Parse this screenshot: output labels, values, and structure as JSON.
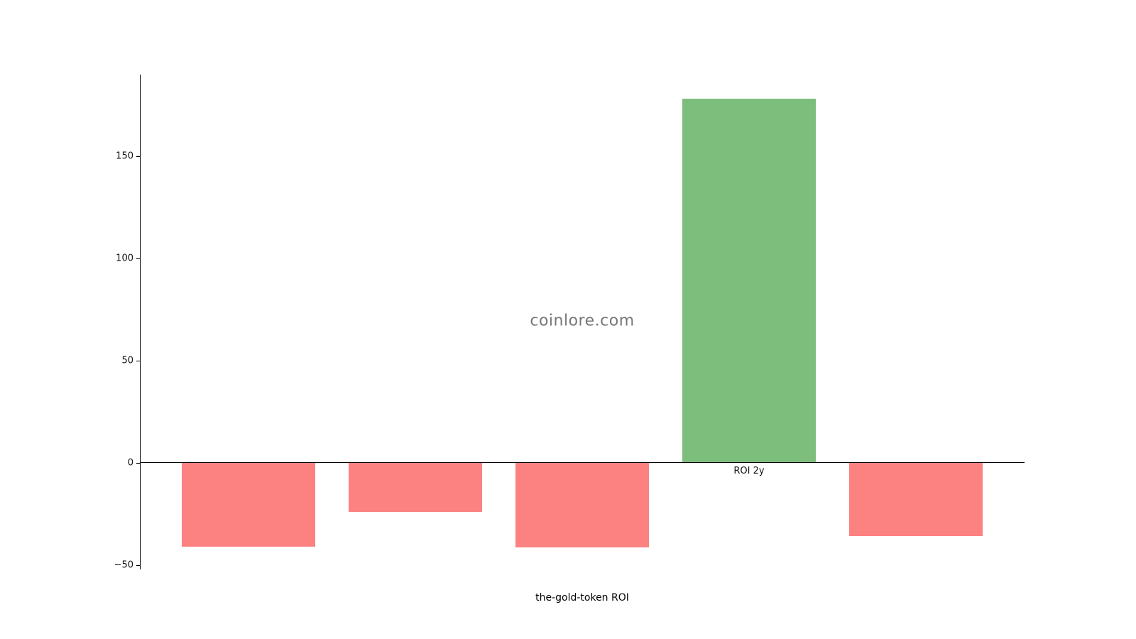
{
  "watermark": {
    "text": "coinlore.com",
    "color": "#777777"
  },
  "chart_data": {
    "type": "bar",
    "title": "",
    "xlabel": "the-gold-token ROI",
    "ylabel": "",
    "categories": [
      "",
      "",
      "",
      "ROI 2y",
      ""
    ],
    "values": [
      -41,
      -24,
      -41.5,
      178,
      -36
    ],
    "bar_colors": [
      "#fc8181",
      "#fc8181",
      "#fc8181",
      "#7dbe7d",
      "#fc8181"
    ],
    "yticks": [
      150,
      100,
      50,
      0,
      -50
    ],
    "ylim": [
      -52.5,
      190
    ],
    "grid": false,
    "legend": "none",
    "background": "#ffffff",
    "axis_color": "#000000"
  }
}
